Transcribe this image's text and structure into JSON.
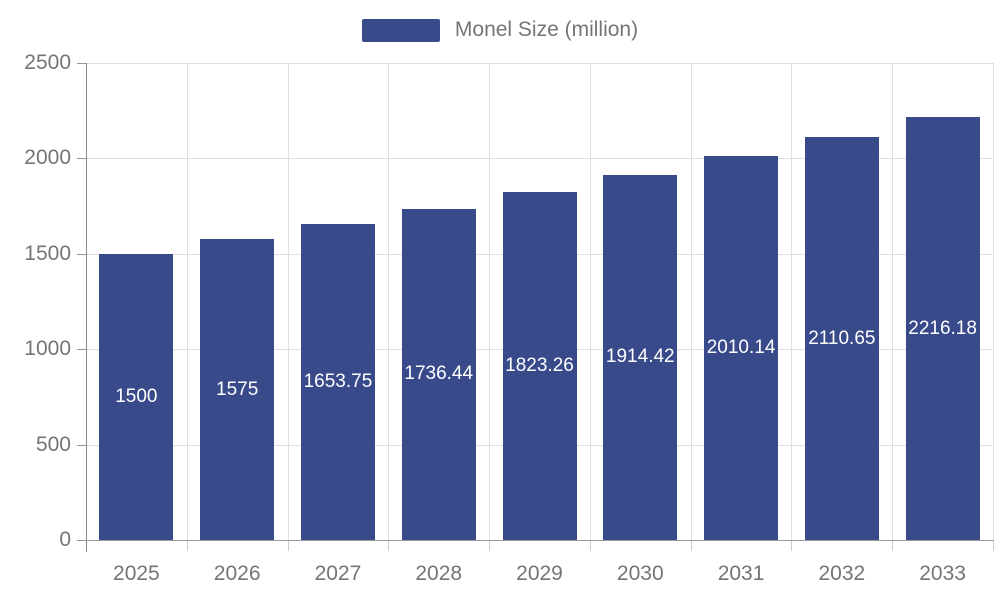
{
  "legend": {
    "label": "Monel Size (million)"
  },
  "chart_data": {
    "type": "bar",
    "title": "",
    "xlabel": "",
    "ylabel": "",
    "categories": [
      "2025",
      "2026",
      "2027",
      "2028",
      "2029",
      "2030",
      "2031",
      "2032",
      "2033"
    ],
    "series": [
      {
        "name": "Monel Size (million)",
        "values": [
          1500,
          1575,
          1653.75,
          1736.44,
          1823.26,
          1914.42,
          2010.14,
          2110.65,
          2216.18
        ],
        "value_labels": [
          "1500",
          "1575",
          "1653.75",
          "1736.44",
          "1823.26",
          "1914.42",
          "2010.14",
          "2110.65",
          "2216.18"
        ]
      }
    ],
    "ylim": [
      0,
      2500
    ],
    "yticks": [
      0,
      500,
      1000,
      1500,
      2000,
      2500
    ],
    "grid": true,
    "legend_position": "top-center",
    "colors": {
      "bar": "#394A8A",
      "bar_label": "#ffffff",
      "axis_text": "#757575",
      "gridline": "#e0e0e0",
      "axis_line": "#888888"
    }
  }
}
